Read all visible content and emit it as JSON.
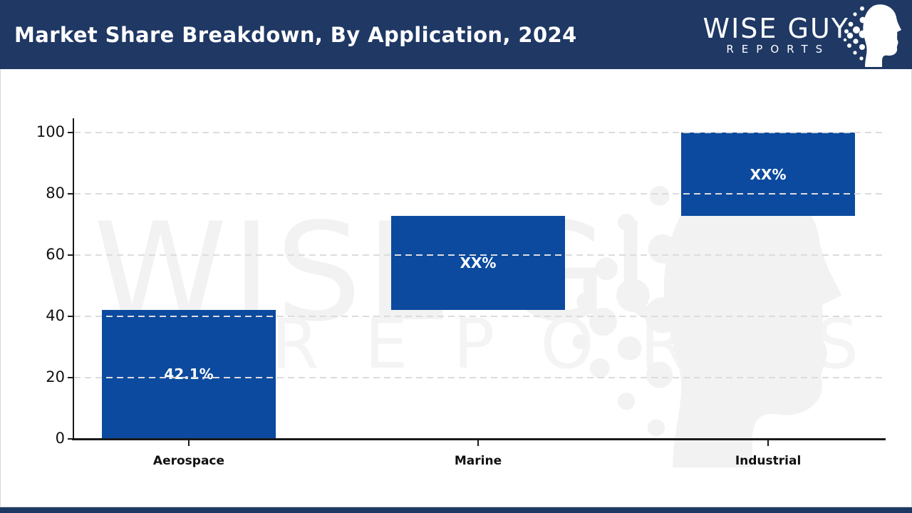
{
  "header": {
    "title": "Market Share Breakdown, By Application, 2024",
    "logo": {
      "name": "WISE GUY",
      "sub": "REPORTS"
    }
  },
  "watermark": {
    "line1": "WISE GUY",
    "line2": "REPORTS"
  },
  "colors": {
    "header_bg": "#1f3864",
    "footer_bg": "#1f3864",
    "bar": "#0b4a9e",
    "gridline": "#dcdcdc",
    "axis": "#1a1a1a",
    "watermark": "#f2f2f2"
  },
  "chart_data": {
    "type": "bar",
    "subtype": "floating-waterfall",
    "title": "Market Share Breakdown, By Application, 2024",
    "categories": [
      "Aerospace",
      "Marine",
      "Industrial"
    ],
    "segments": [
      {
        "category": "Aerospace",
        "from": 0,
        "to": 42.1,
        "label": "42.1%"
      },
      {
        "category": "Marine",
        "from": 42.1,
        "to": 72.7,
        "label": "XX%"
      },
      {
        "category": "Industrial",
        "from": 72.7,
        "to": 100,
        "label": "XX%"
      }
    ],
    "ylim": [
      0,
      100
    ],
    "yticks": [
      0,
      20,
      40,
      60,
      80,
      100
    ],
    "xlabel": "",
    "ylabel": "",
    "grid": "horizontal-dashed",
    "legend": "none",
    "bar_color": "#0b4a9e"
  }
}
